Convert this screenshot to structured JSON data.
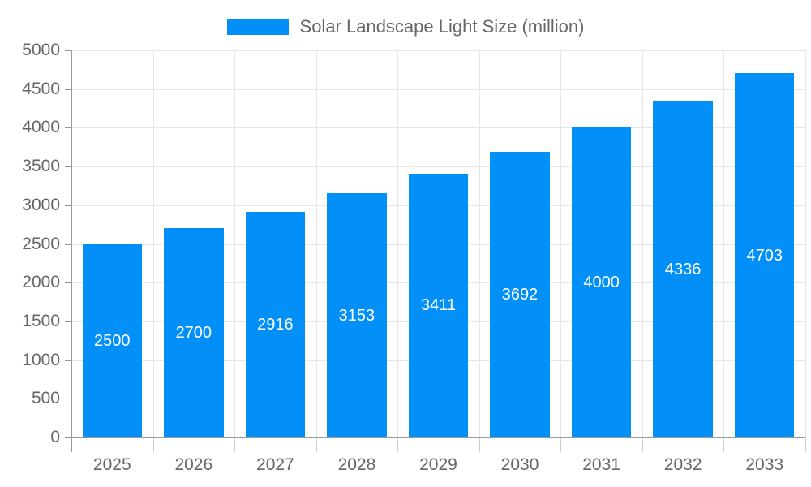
{
  "legend": {
    "label": "Solar Landscape Light Size (million)"
  },
  "chart_data": {
    "type": "bar",
    "title": "Solar Landscape Light Size (million)",
    "categories": [
      "2025",
      "2026",
      "2027",
      "2028",
      "2029",
      "2030",
      "2031",
      "2032",
      "2033"
    ],
    "values": [
      2500,
      2700,
      2916,
      3153,
      3411,
      3692,
      4000,
      4336,
      4703
    ],
    "xlabel": "",
    "ylabel": "",
    "ylim": [
      0,
      5000
    ],
    "ytick_step": 500,
    "ytick_labels": [
      "0",
      "500",
      "1000",
      "1500",
      "2000",
      "2500",
      "3000",
      "3500",
      "4000",
      "4500",
      "5000"
    ],
    "grid": true,
    "legend_position": "top",
    "colors": {
      "bar": "#0290F8",
      "bar_label_text": "#FFFFFF",
      "axis_text": "#666666",
      "axis_line": "#999999",
      "gridline": "#E6E6E6",
      "legend_text": "#666666"
    }
  }
}
